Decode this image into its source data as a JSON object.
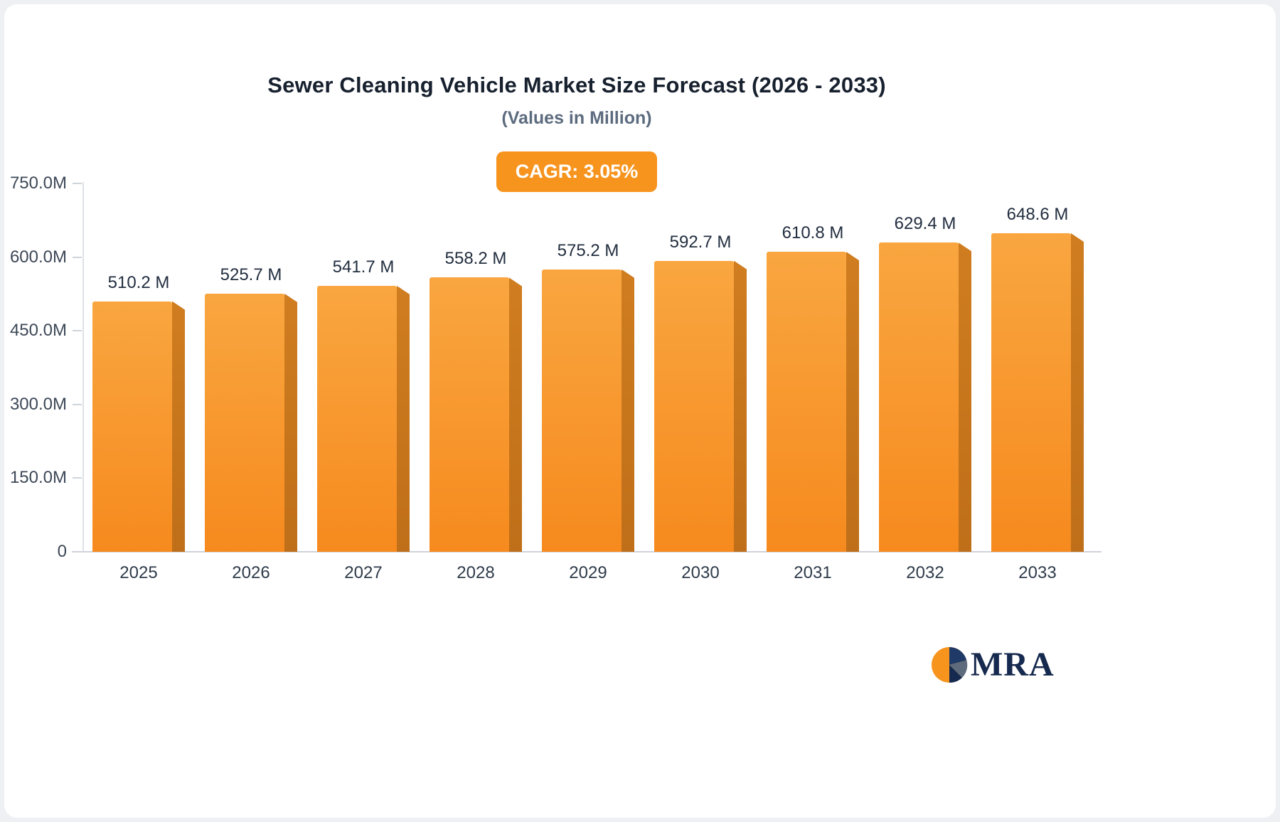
{
  "logo": {
    "text": "MRA"
  },
  "colors": {
    "accent_orange": "#f7941e",
    "bar_top": "#f9a640",
    "bar_bottom": "#f68a1e",
    "bar_side": "#c9741c",
    "title_navy": "#17202e",
    "logo_navy": "#16294e"
  },
  "chart_data": {
    "type": "bar",
    "title": "Sewer Cleaning Vehicle Market Size Forecast (2026 - 2033)",
    "subtitle": "(Values in Million)",
    "annotation": "CAGR: 3.05%",
    "categories": [
      "2025",
      "2026",
      "2027",
      "2028",
      "2029",
      "2030",
      "2031",
      "2032",
      "2033"
    ],
    "values": [
      510.2,
      525.7,
      541.7,
      558.2,
      575.2,
      592.7,
      610.8,
      629.4,
      648.6
    ],
    "value_labels": [
      "510.2 M",
      "525.7 M",
      "541.7 M",
      "558.2 M",
      "575.2 M",
      "592.7 M",
      "610.8 M",
      "629.4 M",
      "648.6 M"
    ],
    "unit": "Million",
    "xlabel": "",
    "ylabel": "",
    "ylim": [
      0,
      750
    ],
    "yticks": [
      750,
      600,
      450,
      300,
      150,
      0
    ],
    "ytick_labels": [
      "750.0M",
      "600.0M",
      "450.0M",
      "300.0M",
      "150.0M",
      "0"
    ],
    "grid": false,
    "legend": false
  }
}
